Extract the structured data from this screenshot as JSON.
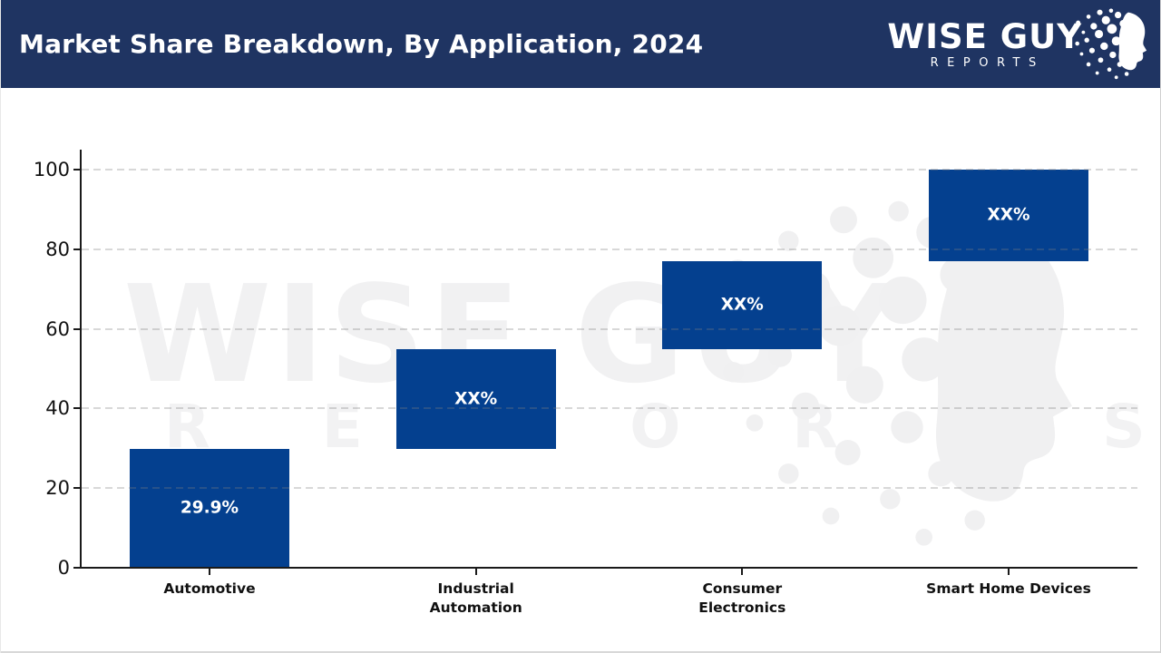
{
  "header": {
    "title": "Market Share Breakdown, By Application, 2024",
    "bg_color": "#1f3462",
    "logo": {
      "line1": "WISE GUY",
      "line2": "REPORTS",
      "icon": "face-profile-dots-icon"
    }
  },
  "watermark": {
    "line1": "WISE GUY",
    "line2": "R E P O R T S"
  },
  "chart_data": {
    "type": "bar",
    "subtype": "waterfall",
    "title": "Market Share Breakdown, By Application, 2024",
    "categories": [
      "Automotive",
      "Industrial Automation",
      "Consumer Electronics",
      "Smart Home Devices"
    ],
    "tick_lines": [
      [
        "Automotive"
      ],
      [
        "Industrial",
        "Automation"
      ],
      [
        "Consumer",
        "Electronics"
      ],
      [
        "Smart Home Devices"
      ]
    ],
    "segments": [
      {
        "category": "Automotive",
        "start": 0,
        "end": 29.9,
        "label": "29.9%"
      },
      {
        "category": "Industrial Automation",
        "start": 29.9,
        "end": 55,
        "label": "XX%"
      },
      {
        "category": "Consumer Electronics",
        "start": 55,
        "end": 77,
        "label": "XX%"
      },
      {
        "category": "Smart Home Devices",
        "start": 77,
        "end": 100,
        "label": "XX%"
      }
    ],
    "yticks": [
      0,
      20,
      40,
      60,
      80,
      100
    ],
    "ylim": [
      0,
      100
    ],
    "xlabel": "",
    "ylabel": "",
    "legend": null,
    "grid": "dashed-horizontal",
    "bar_color": "#04408f",
    "axis_color": "#1a1a1a",
    "grid_color": "#d8d8d8",
    "value_label_color": "#ffffff"
  }
}
